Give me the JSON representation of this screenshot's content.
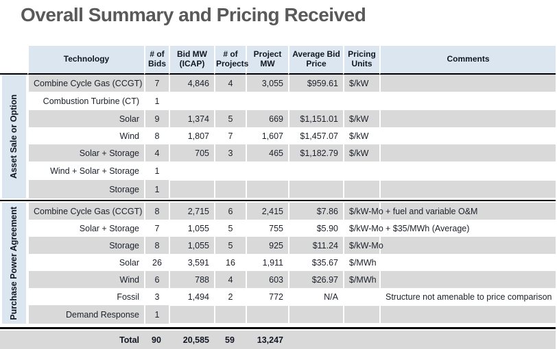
{
  "page": {
    "title": "Overall Summary and Pricing Received"
  },
  "colors": {
    "header_blue": "#dce6f1",
    "row_gray": "#d9d9d9",
    "hatch_stripe": "#46556c",
    "title_gray": "#595959",
    "line_black": "#000000"
  },
  "table": {
    "columns": [
      {
        "key": "technology",
        "label": "Technology",
        "align": "right"
      },
      {
        "key": "bids",
        "label": "# of Bids",
        "align": "center"
      },
      {
        "key": "bid_mw",
        "label": "Bid MW (ICAP)",
        "align": "right"
      },
      {
        "key": "projects",
        "label": "# of Projects",
        "align": "center"
      },
      {
        "key": "project_mw",
        "label": "Project MW",
        "align": "right"
      },
      {
        "key": "avg_price",
        "label": "Average Bid Price",
        "align": "right"
      },
      {
        "key": "units",
        "label": "Pricing Units",
        "align": "left"
      },
      {
        "key": "comments",
        "label": "Comments",
        "align": "left"
      }
    ],
    "groups": [
      {
        "label": "Asset Sale or Option",
        "rows": [
          {
            "technology": "Combine Cycle Gas (CCGT)",
            "bids": "7",
            "bid_mw": "4,846",
            "projects": "4",
            "project_mw": "3,055",
            "avg_price": "$959.61",
            "units": "$/kW",
            "comments": ""
          },
          {
            "technology": "Combustion Turbine (CT)",
            "bids": "1",
            "hatch": "merged"
          },
          {
            "technology": "Solar",
            "bids": "9",
            "bid_mw": "1,374",
            "projects": "5",
            "project_mw": "669",
            "avg_price": "$1,151.01",
            "units": "$/kW",
            "comments": ""
          },
          {
            "technology": "Wind",
            "bids": "8",
            "bid_mw": "1,807",
            "projects": "7",
            "project_mw": "1,607",
            "avg_price": "$1,457.07",
            "units": "$/kW",
            "comments": ""
          },
          {
            "technology": "Solar + Storage",
            "bids": "4",
            "bid_mw": "705",
            "projects": "3",
            "project_mw": "465",
            "avg_price": "$1,182.79",
            "units": "$/kW",
            "comments": ""
          },
          {
            "technology": "Wind + Solar + Storage",
            "bids": "1",
            "hatch": "cells"
          },
          {
            "technology": "Storage",
            "bids": "1",
            "hatch": "cells"
          }
        ]
      },
      {
        "label": "Purchase Power Agreement",
        "rows": [
          {
            "technology": "Combine Cycle Gas (CCGT)",
            "bids": "8",
            "bid_mw": "2,715",
            "projects": "6",
            "project_mw": "2,415",
            "avg_price": "$7.86",
            "units": "$/kW-Mo",
            "comments": "+ fuel and variable O&M"
          },
          {
            "technology": "Solar + Storage",
            "bids": "7",
            "bid_mw": "1,055",
            "projects": "5",
            "project_mw": "755",
            "avg_price": "$5.90",
            "units": "$/kW-Mo",
            "comments": "+ $35/MWh (Average)"
          },
          {
            "technology": "Storage",
            "bids": "8",
            "bid_mw": "1,055",
            "projects": "5",
            "project_mw": "925",
            "avg_price": "$11.24",
            "units": "$/kW-Mo",
            "comments": ""
          },
          {
            "technology": "Solar",
            "bids": "26",
            "bid_mw": "3,591",
            "projects": "16",
            "project_mw": "1,911",
            "avg_price": "$35.67",
            "units": "$/MWh",
            "comments": ""
          },
          {
            "technology": "Wind",
            "bids": "6",
            "bid_mw": "788",
            "projects": "4",
            "project_mw": "603",
            "avg_price": "$26.97",
            "units": "$/MWh",
            "comments": ""
          },
          {
            "technology": "Fossil",
            "bids": "3",
            "bid_mw": "1,494",
            "projects": "2",
            "project_mw": "772",
            "avg_price": "N/A",
            "units": "",
            "comments": "Structure not amenable to price comparison"
          },
          {
            "technology": "Demand Response",
            "bids": "1",
            "hatch": "cells"
          }
        ]
      }
    ],
    "total": {
      "label": "Total",
      "bids": "90",
      "bid_mw": "20,585",
      "projects": "59",
      "project_mw": "13,247"
    }
  }
}
